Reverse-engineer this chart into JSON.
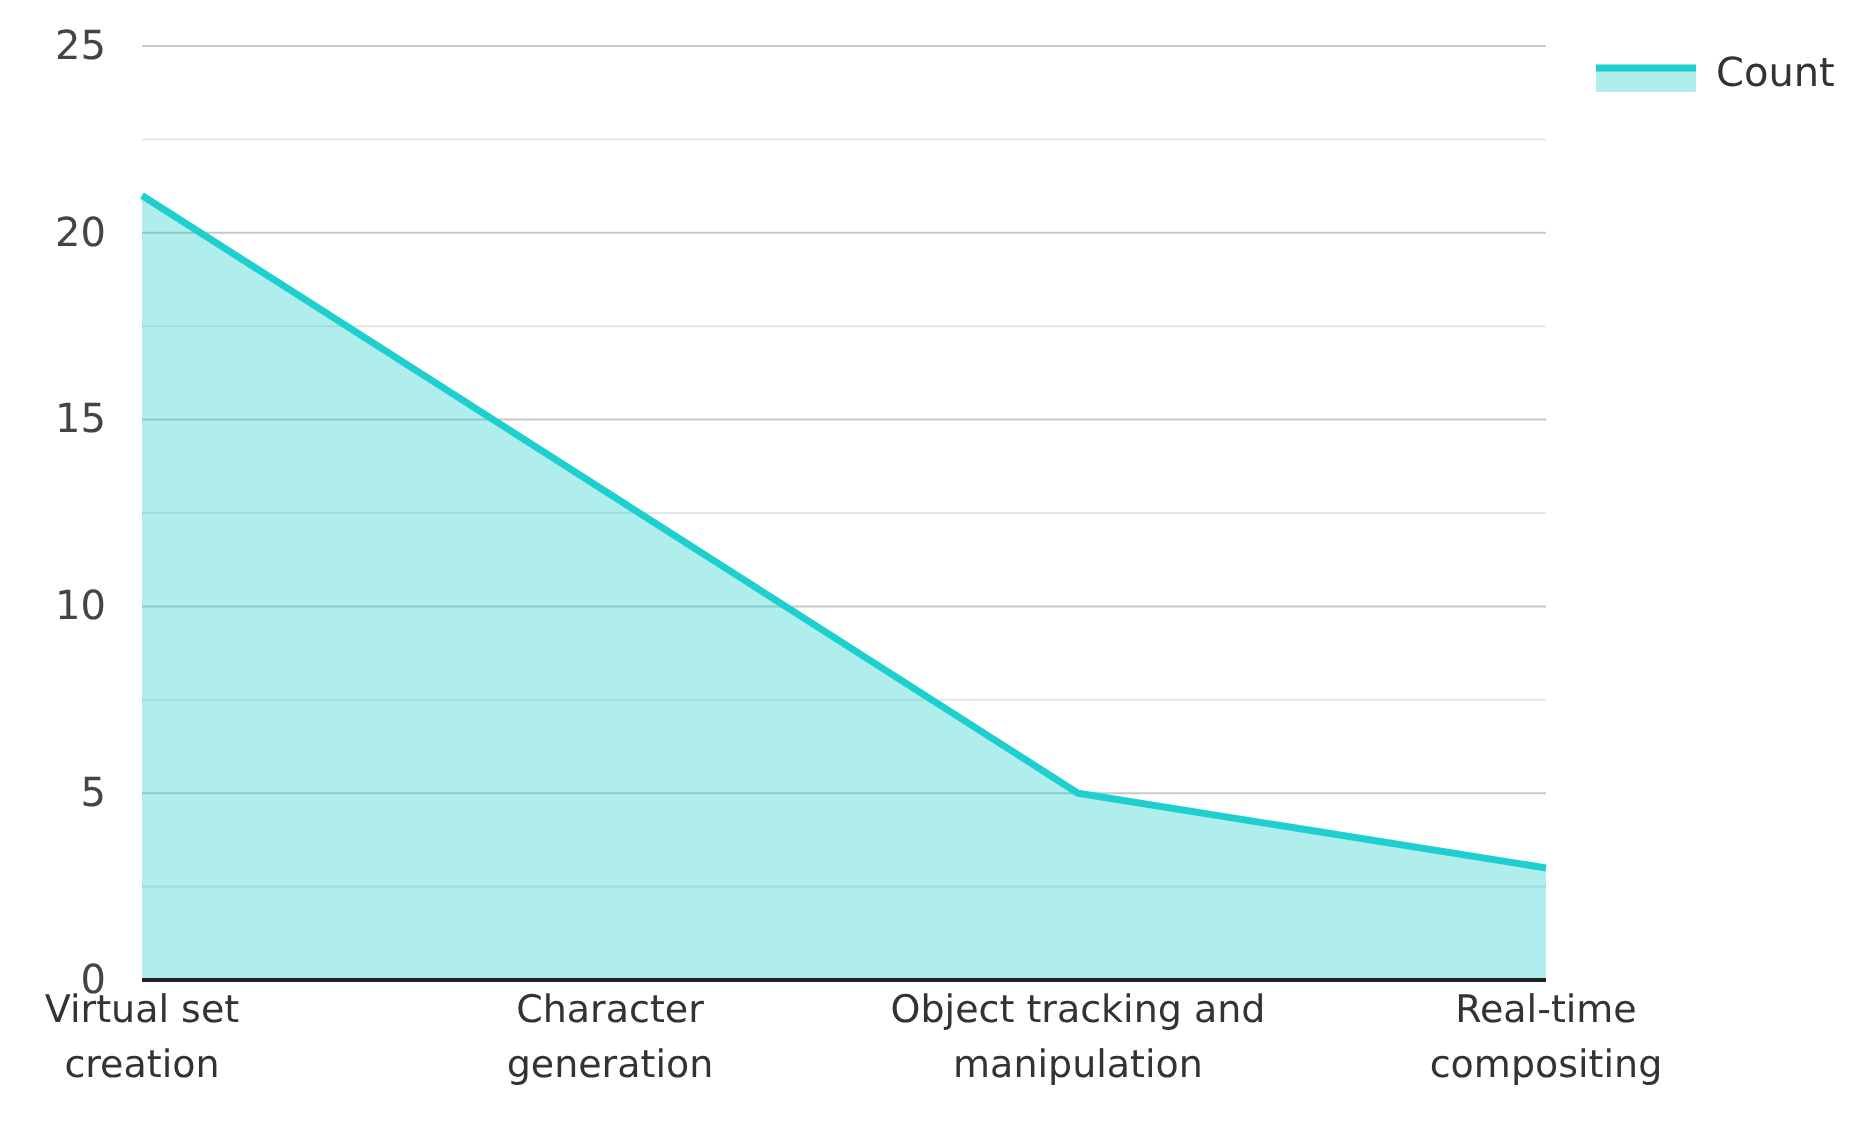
{
  "chart_data": {
    "type": "area",
    "categories": [
      "Virtual set creation",
      "Character generation",
      "Object tracking and manipulation",
      "Real-time compositing"
    ],
    "series": [
      {
        "name": "Count",
        "color": "#1ecfcf",
        "values": [
          21,
          13,
          5,
          3
        ]
      }
    ],
    "ylim": [
      0,
      25
    ],
    "yticks": [
      0,
      {
        "value": 2.5,
        "label": null
      },
      5,
      {
        "value": 7.5,
        "label": null
      },
      10,
      {
        "value": 12.5,
        "label": null
      },
      15,
      {
        "value": 17.5,
        "label": null
      },
      20,
      {
        "value": 22.5,
        "label": null
      },
      25
    ],
    "grid": "y",
    "legend": "top right"
  }
}
